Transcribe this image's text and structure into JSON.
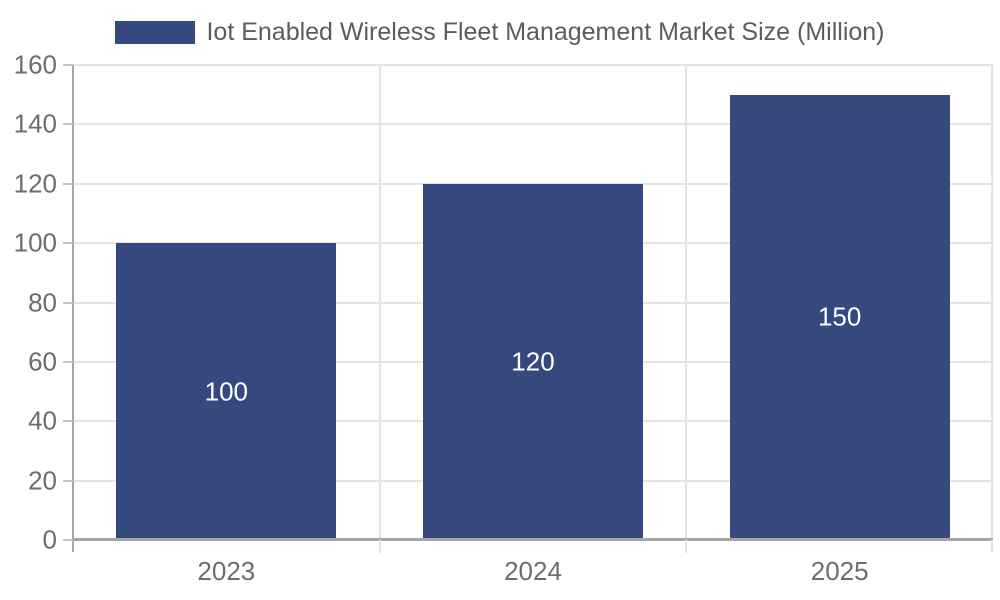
{
  "chart_data": {
    "type": "bar",
    "title": "",
    "legend": "Iot Enabled Wireless Fleet Management Market Size (Million)",
    "legend_position": "top-center",
    "categories": [
      "2023",
      "2024",
      "2025"
    ],
    "values": [
      100,
      120,
      150
    ],
    "bar_value_labels": [
      "100",
      "120",
      "150"
    ],
    "xlabel": "",
    "ylabel": "",
    "ylim": [
      0,
      160
    ],
    "yticks": [
      0,
      20,
      40,
      60,
      80,
      100,
      120,
      140,
      160
    ],
    "grid": true,
    "colors": {
      "bar": "#36497E",
      "grid": "#e4e4e7",
      "axis_spine": "#a6a6a6",
      "tick_mark": "#c4c4c4",
      "tick_label": "#6d6d6d",
      "legend_text": "#595d61",
      "bar_label": "#ffffff",
      "background": "#ffffff"
    }
  }
}
